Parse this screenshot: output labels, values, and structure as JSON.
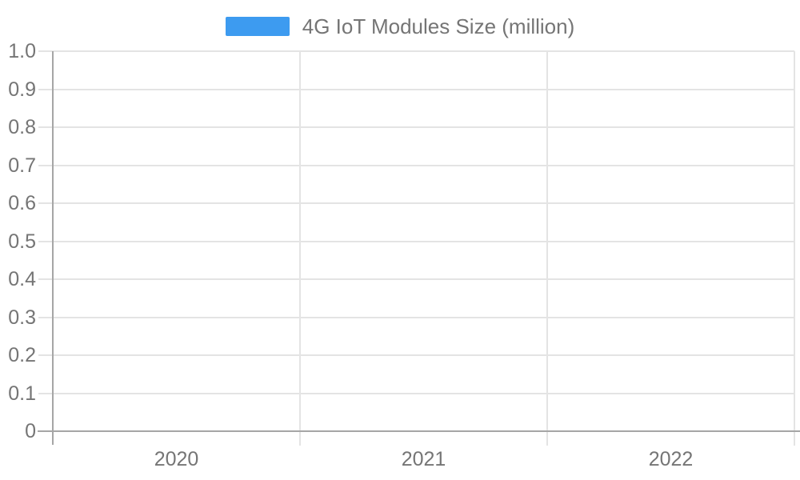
{
  "colors": {
    "series": "#3D9BF0",
    "axis_line": "#A6A6A6",
    "grid_line": "#E4E4E4",
    "label_text": "#757575"
  },
  "legend": {
    "items": [
      {
        "label": "4G IoT Modules Size (million)",
        "color": "#3D9BF0"
      }
    ]
  },
  "chart_data": {
    "type": "bar",
    "title": "",
    "categories": [
      "2020",
      "2021",
      "2022"
    ],
    "series": [
      {
        "name": "4G IoT Modules Size (million)",
        "color": "#3D9BF0",
        "values": [
          0,
          0,
          0
        ]
      }
    ],
    "xlabel": "",
    "ylabel": "",
    "ylim": [
      0,
      1.0
    ],
    "y_tick_step": 0.1,
    "y_tick_labels": [
      "1.0",
      "0.9",
      "0.8",
      "0.7",
      "0.6",
      "0.5",
      "0.4",
      "0.3",
      "0.2",
      "0.1",
      "0"
    ],
    "grid": true,
    "legend_position": "top-center"
  }
}
